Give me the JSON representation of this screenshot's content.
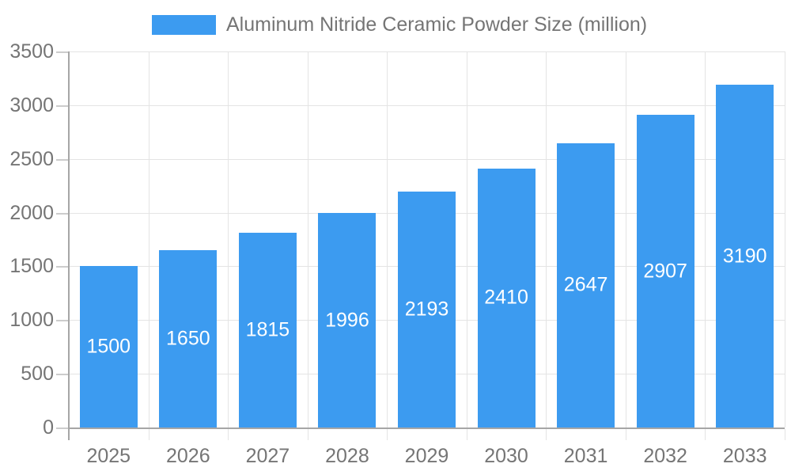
{
  "chart_data": {
    "type": "bar",
    "series_name": "Aluminum Nitride Ceramic Powder Size (million)",
    "categories": [
      "2025",
      "2026",
      "2027",
      "2028",
      "2029",
      "2030",
      "2031",
      "2032",
      "2033"
    ],
    "values": [
      1500,
      1650,
      1815,
      1996,
      2193,
      2410,
      2647,
      2907,
      3190
    ],
    "title": "",
    "xlabel": "",
    "ylabel": "",
    "ylim": [
      0,
      3500
    ],
    "ytick_step": 500,
    "ytick_labels": [
      "0",
      "500",
      "1000",
      "1500",
      "2000",
      "2500",
      "3000",
      "3500"
    ],
    "grid": true,
    "legend_position": "top",
    "value_label_position": "inside-center",
    "colors": {
      "bar": "#3C9BF0",
      "axis_text": "#757575",
      "value_label": "#ffffff",
      "grid_line": "#e4e4e4",
      "tick_line": "#cccccc",
      "axis_line": "#a6a6a6",
      "background": "#ffffff"
    }
  }
}
